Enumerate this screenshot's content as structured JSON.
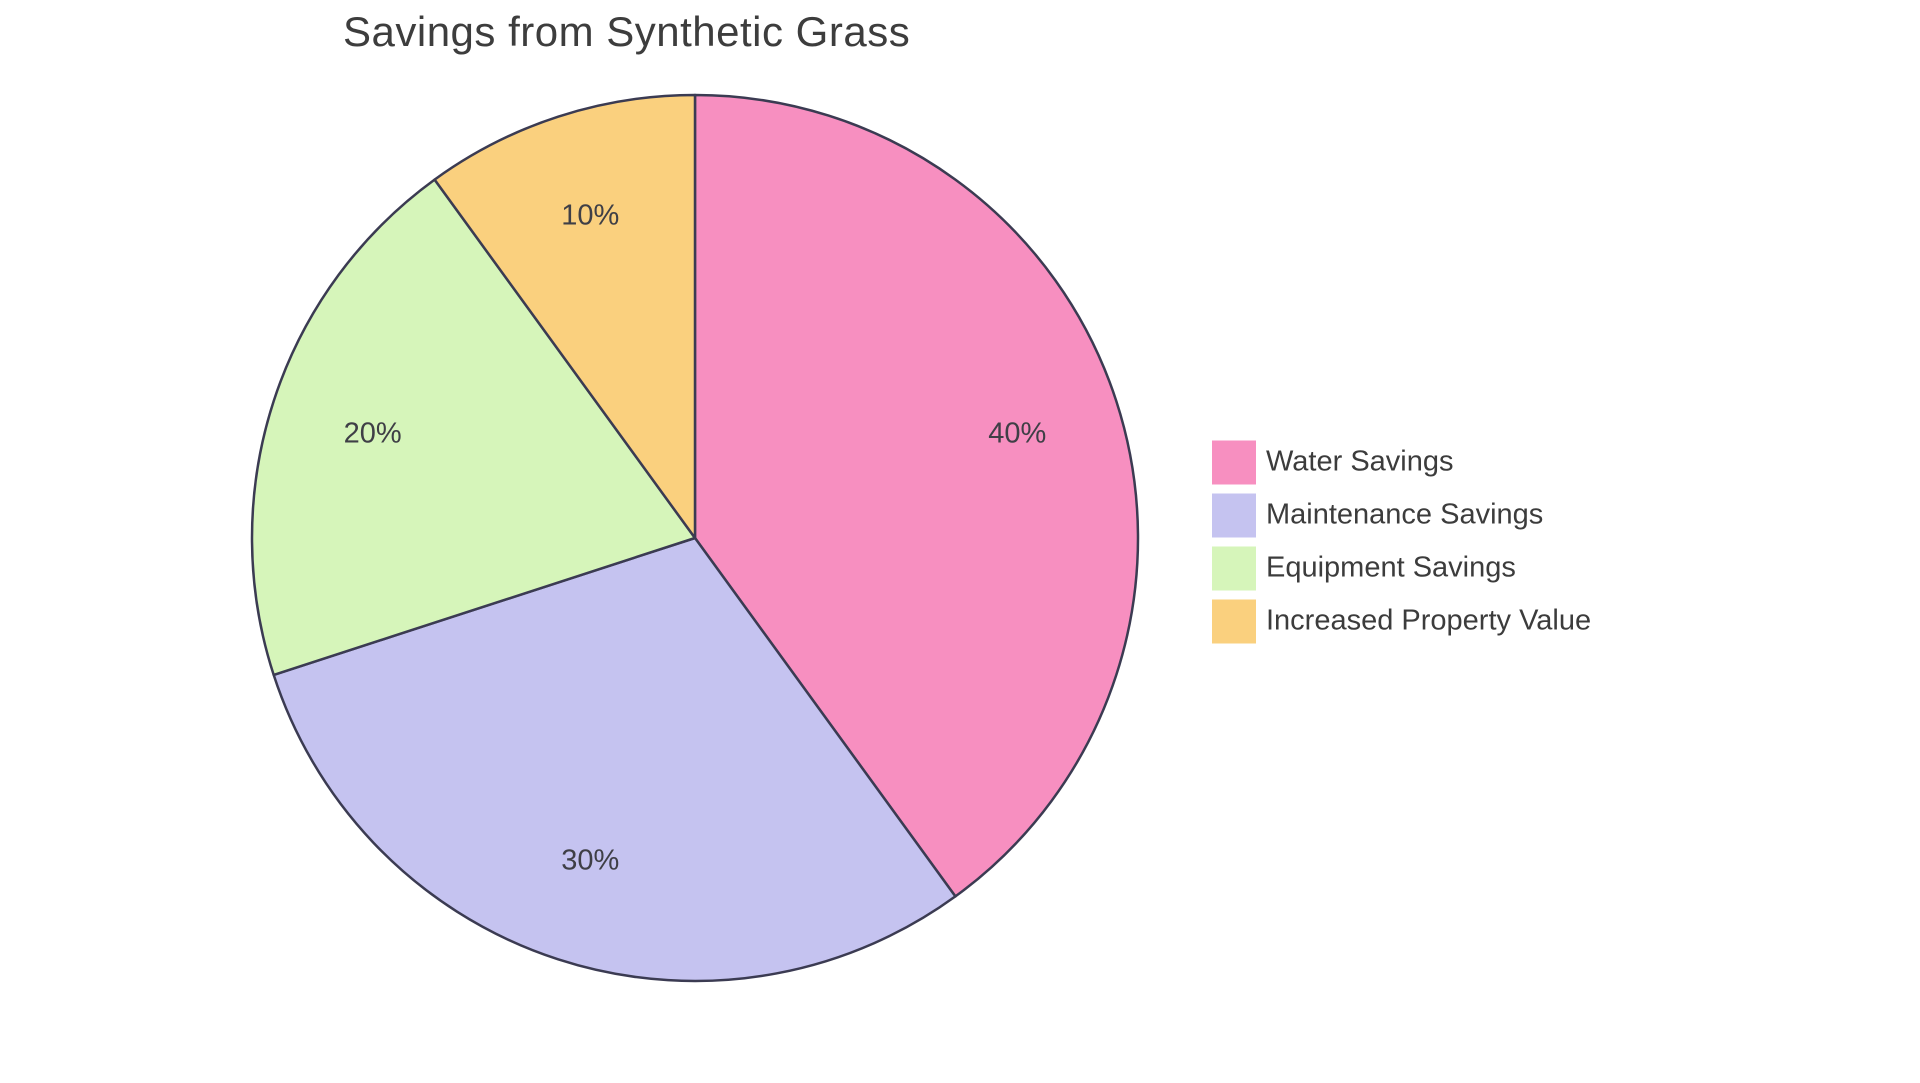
{
  "page": {
    "background": "#FFFFFF"
  },
  "chart_data": {
    "type": "pie",
    "title": "Savings from Synthetic Grass",
    "slices": [
      {
        "label": "Water Savings",
        "value": 40,
        "pct_label": "40%",
        "color": "#F78FC0"
      },
      {
        "label": "Maintenance Savings",
        "value": 30,
        "pct_label": "30%",
        "color": "#C5C3F0"
      },
      {
        "label": "Equipment Savings",
        "value": 20,
        "pct_label": "20%",
        "color": "#D6F5BA"
      },
      {
        "label": "Increased Property Value",
        "value": 10,
        "pct_label": "10%",
        "color": "#FAD07E"
      }
    ],
    "start_angle_deg": 0,
    "direction": "clockwise",
    "slice_outline_color": "#3B3B52",
    "slice_outline_width": 2.5,
    "label_color": "#3F3F46",
    "title_color": "#3D3D3D",
    "legend_position": "middle-right",
    "legend_text_color": "#3C3C3C"
  }
}
